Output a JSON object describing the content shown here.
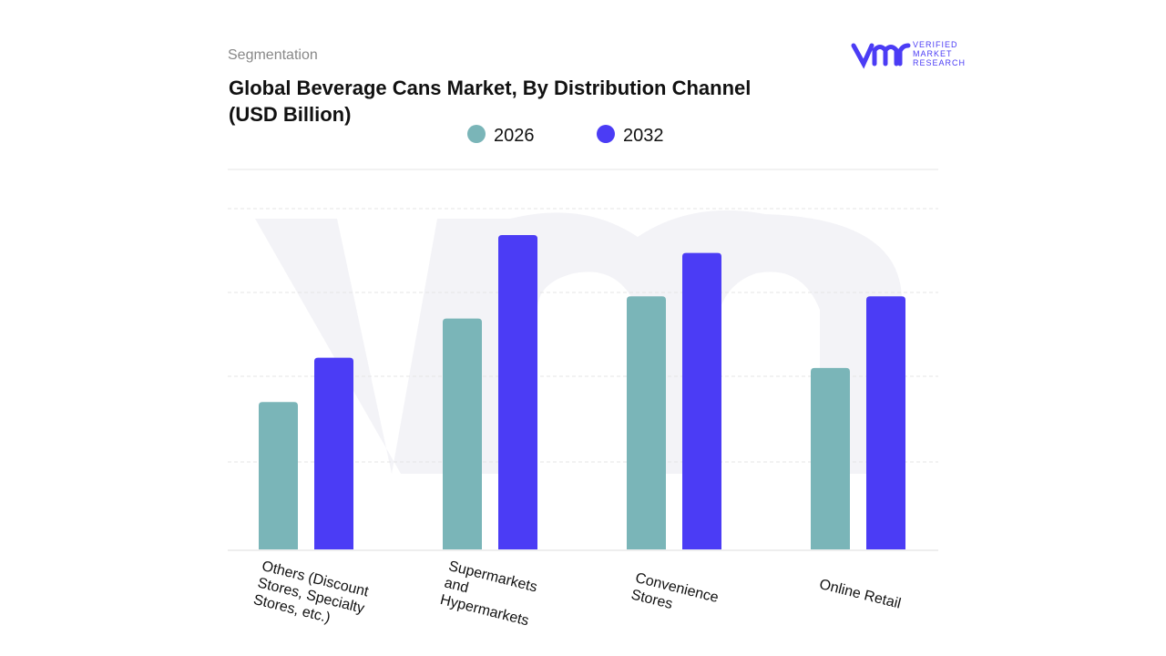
{
  "header": {
    "section": "Segmentation",
    "logo": [
      "VERIFIED",
      "MARKET",
      "RESEARCH"
    ]
  },
  "chart_data": {
    "type": "bar",
    "title": "Global Beverage Cans Market, By Distribution Channel",
    "subtitle": "(USD Billion)",
    "categories": [
      "Others (Discount Stores, Specialty Stores, etc.)",
      "Supermarkets and Hypermarkets",
      "Convenience Stores",
      "Online Retail"
    ],
    "series": [
      {
        "name": "2026",
        "color": "#7ab5b8",
        "values": [
          1.73,
          2.71,
          2.97,
          2.13
        ]
      },
      {
        "name": "2032",
        "color": "#4b3cf5",
        "values": [
          2.25,
          3.69,
          3.48,
          2.97
        ]
      }
    ],
    "ylim": [
      0,
      4.46
    ]
  }
}
